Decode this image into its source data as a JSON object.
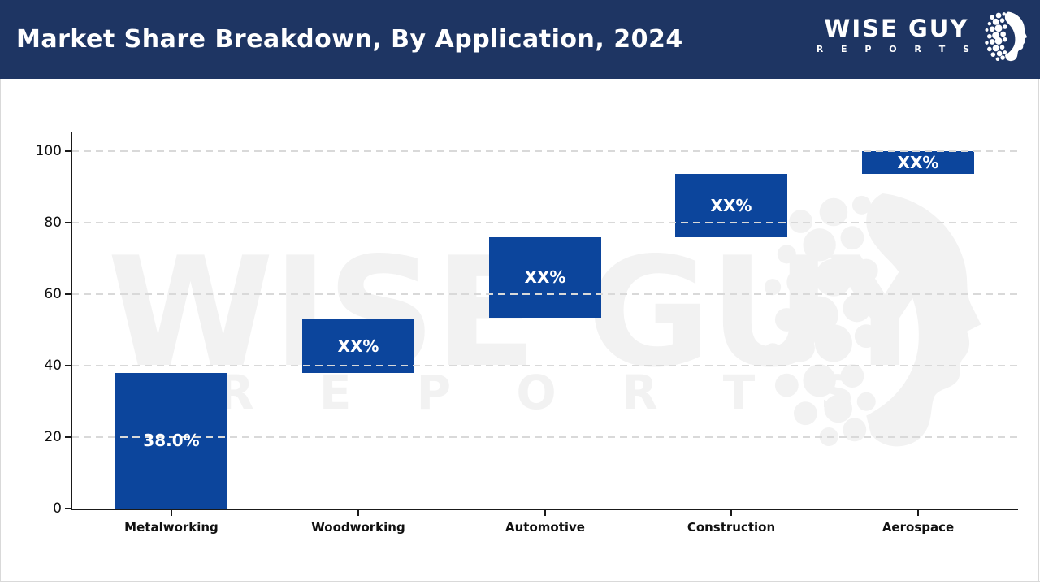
{
  "header": {
    "title": "Market Share Breakdown, By Application, 2024",
    "brand": {
      "name": "WISE GUY",
      "sub": "R E P O R T S"
    }
  },
  "watermark": {
    "name": "WISE GUY",
    "sub": "R E P O R T S"
  },
  "chart_data": {
    "type": "bar",
    "variant": "waterfall",
    "title": "Market Share Breakdown, By Application, 2024",
    "categories": [
      "Metalworking",
      "Woodworking",
      "Automotive",
      "Construction",
      "Aerospace"
    ],
    "segments": [
      {
        "category": "Metalworking",
        "from": 0,
        "to": 38,
        "label": "38.0%"
      },
      {
        "category": "Woodworking",
        "from": 38,
        "to": 53,
        "label": "XX%"
      },
      {
        "category": "Automotive",
        "from": 53.5,
        "to": 76,
        "label": "XX%"
      },
      {
        "category": "Construction",
        "from": 76,
        "to": 93.7,
        "label": "XX%"
      },
      {
        "category": "Aerospace",
        "from": 93.6,
        "to": 100,
        "label": "XX%"
      }
    ],
    "values_visible": [
      38.0,
      null,
      null,
      null,
      null
    ],
    "yticks": [
      0,
      20,
      40,
      60,
      80,
      100
    ],
    "ylim": [
      0,
      105
    ],
    "grid": {
      "axis": "y",
      "style": "dashed",
      "color": "#d9d9d9",
      "above_bars": true
    },
    "legend": "none",
    "xlabel": "",
    "ylabel": "",
    "bar_color": "#0c459c",
    "bar_label_color": "#ffffff",
    "axis_color": "#1a1a1a"
  },
  "colors": {
    "header_bg": "#1e3563",
    "watermark": "#f2f2f2",
    "page_bg": "#ffffff",
    "border": "#d9d9d9"
  }
}
